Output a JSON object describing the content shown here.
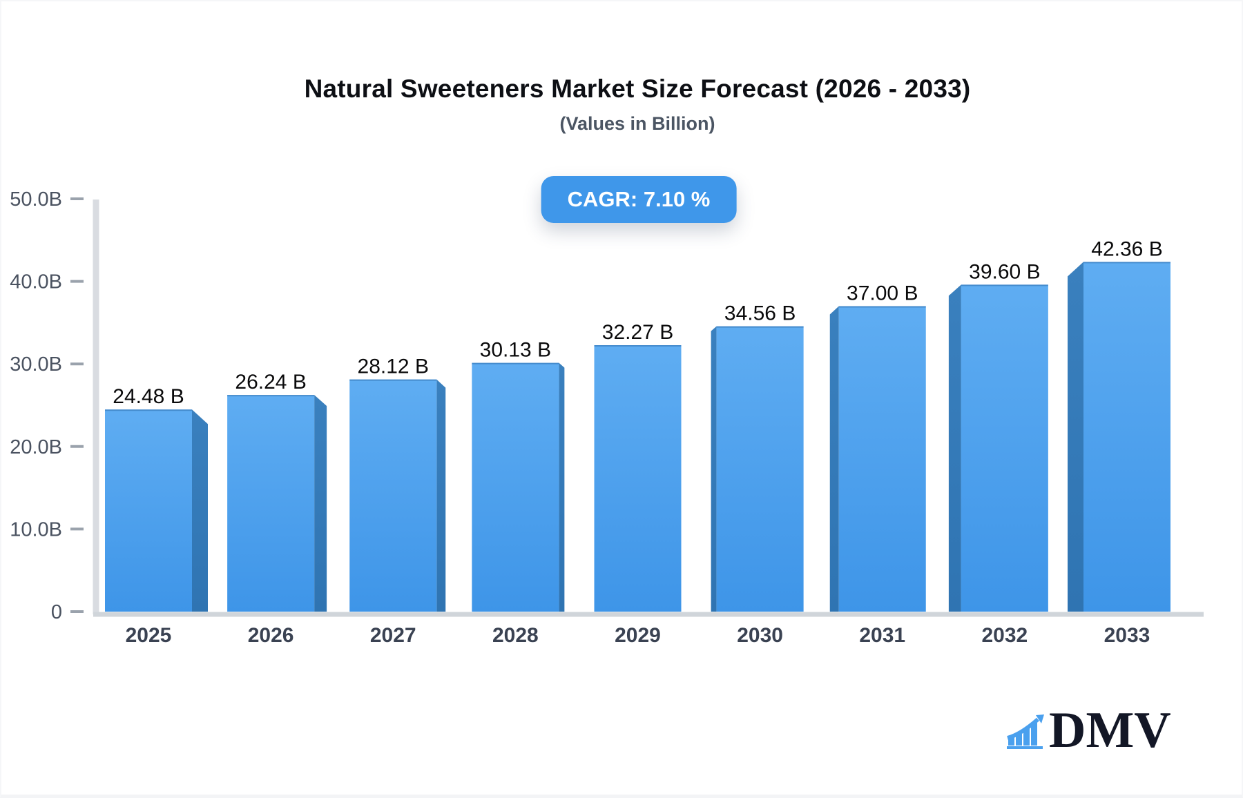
{
  "header": {
    "title": "Natural Sweeteners Market Size Forecast (2026 - 2033)",
    "subtitle": "(Values in Billion)"
  },
  "cagr_badge": {
    "label": "CAGR: 7.10 %",
    "background": "#3f97ea",
    "text_color": "#ffffff"
  },
  "watermark": {
    "brand": "DMV",
    "icon": "growth-bar-chart-icon",
    "icon_color": "#4aa0ee",
    "text_color": "#131726"
  },
  "chart_data": {
    "type": "bar",
    "title": "Natural Sweeteners Market Size Forecast (2026 - 2033)",
    "subtitle": "(Values in Billion)",
    "categories": [
      "2025",
      "2026",
      "2027",
      "2028",
      "2029",
      "2030",
      "2031",
      "2032",
      "2033"
    ],
    "values": [
      24.48,
      26.24,
      28.12,
      30.13,
      32.27,
      34.56,
      37.0,
      39.6,
      42.36
    ],
    "bar_labels": [
      "24.48 B",
      "26.24 B",
      "28.12 B",
      "30.13 B",
      "32.27 B",
      "34.56 B",
      "37.00 B",
      "39.60 B",
      "42.36 B"
    ],
    "ylim": [
      0,
      50
    ],
    "y_ticks": [
      {
        "value": 0,
        "label": "0"
      },
      {
        "value": 10,
        "label": "10.0B"
      },
      {
        "value": 20,
        "label": "20.0B"
      },
      {
        "value": 30,
        "label": "30.0B"
      },
      {
        "value": 40,
        "label": "40.0B"
      },
      {
        "value": 50,
        "label": "50.0B"
      }
    ],
    "grid": false,
    "legend": false,
    "style": {
      "bar_front_top": "#5fadf2",
      "bar_front_bottom": "#3e95e8",
      "bar_side_top": "#3a80be",
      "bar_side_bottom": "#2f74b2",
      "bar_top_edge": "#2d6fae",
      "axis_line_color": "#d9dce1",
      "baseline_color": "#d0d5da",
      "tick_color": "#9aa2ac",
      "tick_label_color": "#4a5260",
      "category_label_color": "#3a4252",
      "value_label_color": "#0a0a0b"
    }
  }
}
